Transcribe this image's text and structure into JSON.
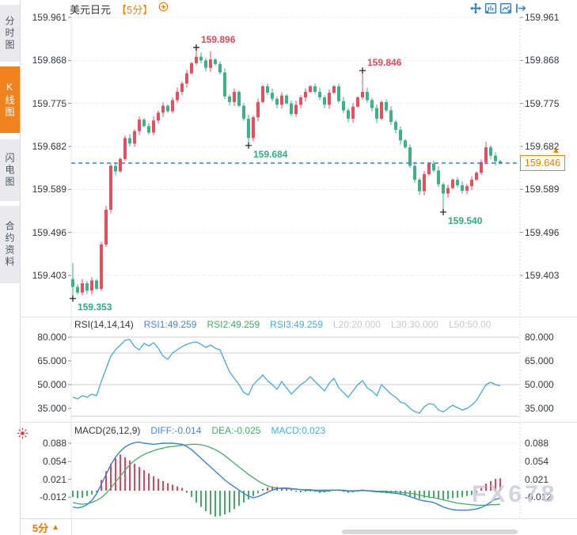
{
  "header": {
    "symbol": "美元日元",
    "period": "【5分】"
  },
  "sidebar": {
    "tabs": [
      {
        "label": "分时图",
        "active": false
      },
      {
        "label": "K线图",
        "active": true
      },
      {
        "label": "闪电图",
        "active": false
      },
      {
        "label": "合约资料",
        "active": false
      }
    ]
  },
  "toolbar": {
    "icons": [
      "crosshair-move",
      "zoom-area",
      "restore-zoom",
      "go-to-latest"
    ]
  },
  "price_tag": {
    "value": "159.646",
    "arrow": "▲"
  },
  "bottom_bar": {
    "label": "5分",
    "arrow": "▲"
  },
  "watermark": "FX678",
  "colors": {
    "up": "#e4505e",
    "down": "#3cb286",
    "rsi_line": "#4aa8dc",
    "diff_line": "#3b7fd6",
    "dea_line": "#43ad68",
    "hist_pos": "#e0485a",
    "hist_neg": "#43ad68",
    "dashed_price_line": "#1f7ae0",
    "accent_orange": "#f08200",
    "annotation_high": "#e0485a",
    "annotation_low": "#2fae7d",
    "axis_text": "#33373d",
    "muted_label": "#c5c9ce",
    "legend_blue": "#4a86d8",
    "legend_green": "#3fae62",
    "legend_cyan": "#45aee0",
    "grid": "#dfe2e7",
    "guide": "#c9ccd2",
    "separator": "#e2e4e8",
    "toolbar_blue": "#2b7cc9",
    "sidebar_active_bg": "#f0831e",
    "watermark_gray": "#c9cdd6",
    "cross_marker": "#15181c"
  },
  "rsi_legend": [
    {
      "text": "RSI(14,14,14)",
      "color": "#33373d"
    },
    {
      "text": "RSI1:49.259",
      "color": "#4a86d8"
    },
    {
      "text": "RSI2:49.259",
      "color": "#3fae62"
    },
    {
      "text": "RSI3:49.259",
      "color": "#45aee0"
    },
    {
      "text": "L20:20.000",
      "color": "#c5c9ce"
    },
    {
      "text": "L30:30.000",
      "color": "#c5c9ce"
    },
    {
      "text": "L50:50.00",
      "color": "#c5c9ce"
    }
  ],
  "macd_legend": [
    {
      "text": "MACD(26,12,9)",
      "color": "#33373d"
    },
    {
      "text": "DIFF:-0.014",
      "color": "#4a86d8"
    },
    {
      "text": "DEA:-0.025",
      "color": "#3fae62"
    },
    {
      "text": "MACD:0.023",
      "color": "#45aee0"
    }
  ],
  "chart_data": [
    {
      "type": "candlestick",
      "title": "美元日元",
      "interval": "5分",
      "axis_tick_labels": [
        "159.961",
        "159.868",
        "159.775",
        "159.682",
        "159.589",
        "159.496",
        "159.403"
      ],
      "ylim": [
        159.314,
        159.961
      ],
      "grid": "dotted",
      "current_price": 159.646,
      "first_open": 159.395,
      "closes": [
        159.378,
        159.366,
        159.386,
        159.37,
        159.392,
        159.374,
        159.47,
        159.545,
        159.64,
        159.628,
        159.655,
        159.7,
        159.688,
        159.715,
        159.74,
        159.726,
        159.712,
        159.738,
        159.755,
        159.77,
        159.758,
        159.782,
        159.8,
        159.818,
        159.84,
        159.862,
        159.876,
        159.868,
        159.852,
        159.87,
        159.86,
        159.842,
        159.79,
        159.778,
        159.8,
        159.77,
        159.742,
        159.7,
        159.745,
        159.778,
        159.812,
        159.798,
        159.785,
        159.772,
        159.792,
        159.775,
        159.752,
        159.772,
        159.788,
        159.8,
        159.812,
        159.8,
        159.788,
        159.772,
        159.798,
        159.812,
        159.78,
        159.76,
        159.742,
        159.768,
        159.788,
        159.8,
        159.782,
        159.765,
        159.742,
        159.778,
        159.76,
        159.735,
        159.718,
        159.695,
        159.68,
        159.64,
        159.61,
        159.585,
        159.622,
        159.645,
        159.63,
        159.6,
        159.58,
        159.592,
        159.61,
        159.598,
        159.586,
        159.596,
        159.61,
        159.625,
        159.648,
        159.68,
        159.662,
        159.65,
        159.646
      ],
      "extremes": {
        "0": {
          "high": 159.43,
          "low": 159.353
        },
        "26": {
          "high": 159.896
        },
        "29": {
          "high": 159.888
        },
        "37": {
          "low": 159.684
        },
        "61": {
          "high": 159.846
        },
        "78": {
          "low": 159.54
        },
        "87": {
          "high": 159.692
        }
      },
      "annotations": [
        {
          "text": "159.353",
          "price": 159.353,
          "index": 0,
          "side": "low"
        },
        {
          "text": "159.896",
          "price": 159.896,
          "index": 26,
          "side": "high"
        },
        {
          "text": "159.684",
          "price": 159.684,
          "index": 37,
          "side": "low"
        },
        {
          "text": "159.846",
          "price": 159.846,
          "index": 61,
          "side": "high"
        },
        {
          "text": "159.540",
          "price": 159.54,
          "index": 78,
          "side": "low"
        }
      ]
    },
    {
      "type": "line",
      "name": "RSI",
      "params": "(14,14,14)",
      "axis_tick_labels": [
        "80.000",
        "65.000",
        "50.000",
        "35.000"
      ],
      "axis_ticks": [
        80,
        65,
        50,
        35
      ],
      "guide_lines": [
        80,
        70,
        50,
        30
      ],
      "values": [
        42,
        41,
        43,
        42,
        44,
        43,
        52,
        60,
        68,
        72,
        75,
        78,
        78.5,
        74,
        72,
        76,
        74.5,
        76.5,
        73,
        68,
        66,
        70,
        72,
        74,
        75.5,
        76.5,
        77,
        75.5,
        73.5,
        75,
        73,
        72,
        65,
        58,
        54,
        50,
        45,
        43.5,
        50,
        53,
        56,
        52.5,
        50,
        47,
        52,
        48,
        44,
        47,
        50,
        52,
        55,
        52,
        49,
        46,
        51,
        54,
        48,
        45,
        42,
        46,
        50,
        52.5,
        48,
        46,
        43,
        50,
        47,
        44,
        42,
        39,
        38,
        35,
        33,
        32,
        36,
        38,
        37.5,
        34,
        32.8,
        35,
        37,
        35.5,
        34,
        35,
        37,
        40,
        45,
        50,
        51.5,
        50,
        49.259
      ]
    },
    {
      "type": "macd",
      "name": "MACD",
      "params": "(26,12,9)",
      "axis_tick_labels": [
        "0.088",
        "0.054",
        "0.021",
        "-0.012"
      ],
      "axis_ticks": [
        0.088,
        0.054,
        0.021,
        -0.012
      ],
      "diff": [
        -0.03,
        -0.032,
        -0.03,
        -0.026,
        -0.018,
        -0.006,
        0.012,
        0.03,
        0.048,
        0.062,
        0.073,
        0.081,
        0.086,
        0.089,
        0.09,
        0.088,
        0.087,
        0.086,
        0.087,
        0.088,
        0.088,
        0.088,
        0.087,
        0.086,
        0.082,
        0.076,
        0.068,
        0.06,
        0.052,
        0.044,
        0.036,
        0.028,
        0.02,
        0.013,
        0.007,
        0.001,
        -0.005,
        -0.01,
        -0.013,
        -0.011,
        -0.007,
        -0.003,
        0.001,
        0.004,
        0.005,
        0.005,
        0.004,
        0.003,
        0.002,
        0.001,
        0.001,
        0.0,
        -0.001,
        -0.001,
        0.0,
        0.001,
        0.001,
        0.0,
        -0.001,
        -0.001,
        0.0,
        0.001,
        0.0,
        -0.001,
        -0.002,
        -0.002,
        -0.003,
        -0.004,
        -0.005,
        -0.006,
        -0.008,
        -0.011,
        -0.014,
        -0.017,
        -0.019,
        -0.02,
        -0.022,
        -0.026,
        -0.03,
        -0.033,
        -0.035,
        -0.036,
        -0.036,
        -0.036,
        -0.035,
        -0.034,
        -0.031,
        -0.027,
        -0.021,
        -0.016,
        -0.014
      ],
      "dea": [
        -0.022,
        -0.024,
        -0.025,
        -0.024,
        -0.022,
        -0.018,
        -0.013,
        -0.005,
        0.005,
        0.016,
        0.027,
        0.038,
        0.048,
        0.056,
        0.062,
        0.067,
        0.071,
        0.074,
        0.077,
        0.079,
        0.081,
        0.082,
        0.083,
        0.084,
        0.085,
        0.086,
        0.086,
        0.085,
        0.083,
        0.08,
        0.076,
        0.071,
        0.065,
        0.058,
        0.051,
        0.044,
        0.037,
        0.03,
        0.024,
        0.018,
        0.013,
        0.009,
        0.006,
        0.005,
        0.004,
        0.004,
        0.003,
        0.003,
        0.002,
        0.002,
        0.002,
        0.001,
        0.001,
        0.001,
        0.001,
        0.001,
        0.001,
        0.001,
        0.0,
        0.0,
        0.0,
        0.0,
        0.0,
        0.0,
        -0.001,
        -0.001,
        -0.001,
        -0.002,
        -0.002,
        -0.003,
        -0.004,
        -0.005,
        -0.006,
        -0.008,
        -0.01,
        -0.012,
        -0.013,
        -0.015,
        -0.017,
        -0.019,
        -0.021,
        -0.023,
        -0.024,
        -0.025,
        -0.026,
        -0.027,
        -0.027,
        -0.027,
        -0.026,
        -0.026,
        -0.025
      ],
      "histogram": [
        -0.012,
        -0.014,
        -0.013,
        -0.01,
        -0.007,
        -0.003,
        0.02,
        0.036,
        0.05,
        0.06,
        0.067,
        0.062,
        0.056,
        0.05,
        0.044,
        0.038,
        0.032,
        0.027,
        0.022,
        0.018,
        0.014,
        0.011,
        0.008,
        0.005,
        -0.004,
        -0.012,
        -0.022,
        -0.03,
        -0.038,
        -0.044,
        -0.048,
        -0.047,
        -0.044,
        -0.04,
        -0.034,
        -0.028,
        -0.022,
        -0.016,
        -0.01,
        -0.005,
        0.003,
        0.006,
        0.008,
        0.007,
        0.005,
        0.003,
        0.002,
        -0.002,
        -0.003,
        -0.002,
        -0.001,
        -0.002,
        -0.004,
        -0.003,
        -0.002,
        0.002,
        0.001,
        -0.002,
        -0.004,
        -0.003,
        -0.002,
        0.002,
        0.001,
        -0.002,
        -0.003,
        -0.004,
        -0.005,
        -0.005,
        -0.006,
        -0.007,
        -0.008,
        -0.011,
        -0.013,
        -0.015,
        -0.013,
        -0.011,
        -0.013,
        -0.015,
        -0.017,
        -0.016,
        -0.014,
        -0.013,
        -0.012,
        -0.01,
        -0.008,
        -0.005,
        0.007,
        0.013,
        0.018,
        0.022,
        0.023
      ]
    }
  ]
}
